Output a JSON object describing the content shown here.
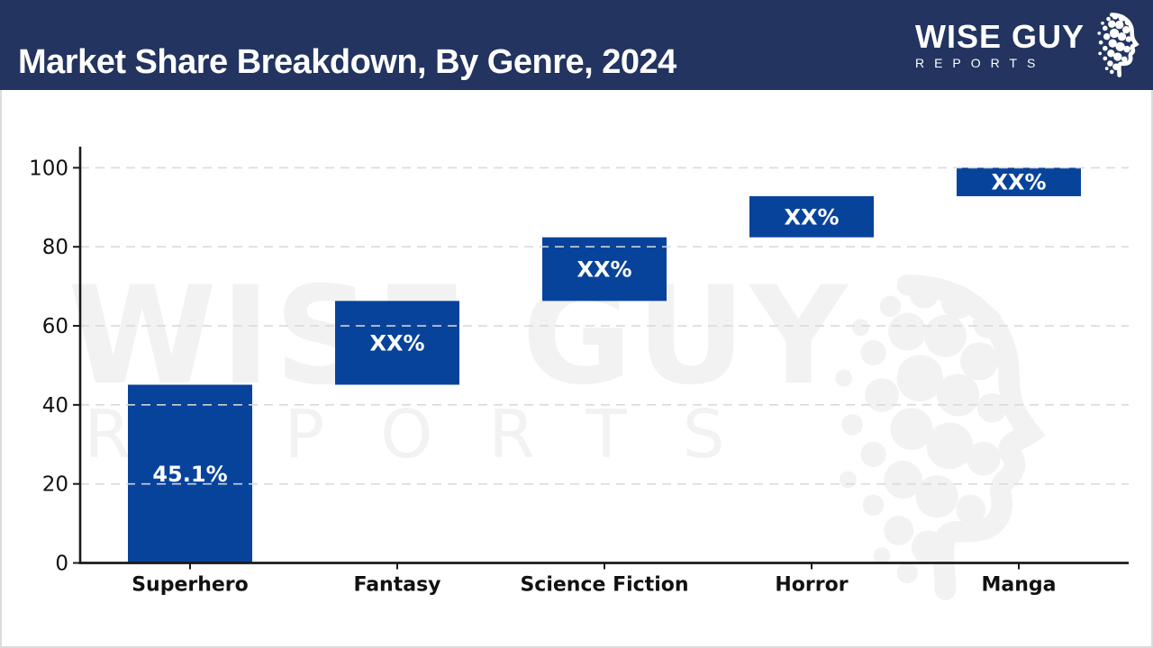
{
  "header": {
    "title": "Market Share Breakdown, By Genre, 2024",
    "brand": {
      "line1": "WISE GUY",
      "line2": "REPORTS"
    }
  },
  "watermark": {
    "line1": "WISE GUY",
    "line2": "REPORTS"
  },
  "colors": {
    "header_bg": "#22345f",
    "bar_blue": "#08439b",
    "grid_gray": "#d9d9d9",
    "axis_black": "#1a1a1a",
    "watermark_gray": "#f2f2f2",
    "bar_label_white": "#ffffff"
  },
  "chart_data": {
    "type": "bar",
    "subtype": "waterfall",
    "title": "Market Share Breakdown, By Genre, 2024",
    "categories": [
      "Superhero",
      "Fantasy",
      "Science Fiction",
      "Horror",
      "Manga"
    ],
    "segments": [
      {
        "category": "Superhero",
        "start": 0,
        "end": 45.1,
        "label": "45.1%"
      },
      {
        "category": "Fantasy",
        "start": 45.1,
        "end": 66.3,
        "label": "XX%"
      },
      {
        "category": "Science Fiction",
        "start": 66.3,
        "end": 82.4,
        "label": "XX%"
      },
      {
        "category": "Horror",
        "start": 82.4,
        "end": 92.8,
        "label": "XX%"
      },
      {
        "category": "Manga",
        "start": 92.8,
        "end": 100.0,
        "label": "XX%"
      }
    ],
    "xlabel": "",
    "ylabel": "",
    "yticks": [
      0,
      20,
      40,
      60,
      80,
      100
    ],
    "ylim": [
      0,
      105
    ],
    "grid": {
      "show": true,
      "style": "dashed",
      "color": "#d9d9d9",
      "on_top": true
    },
    "legend": "none",
    "bar_color": "#08439b",
    "bar_label_color": "#ffffff"
  }
}
